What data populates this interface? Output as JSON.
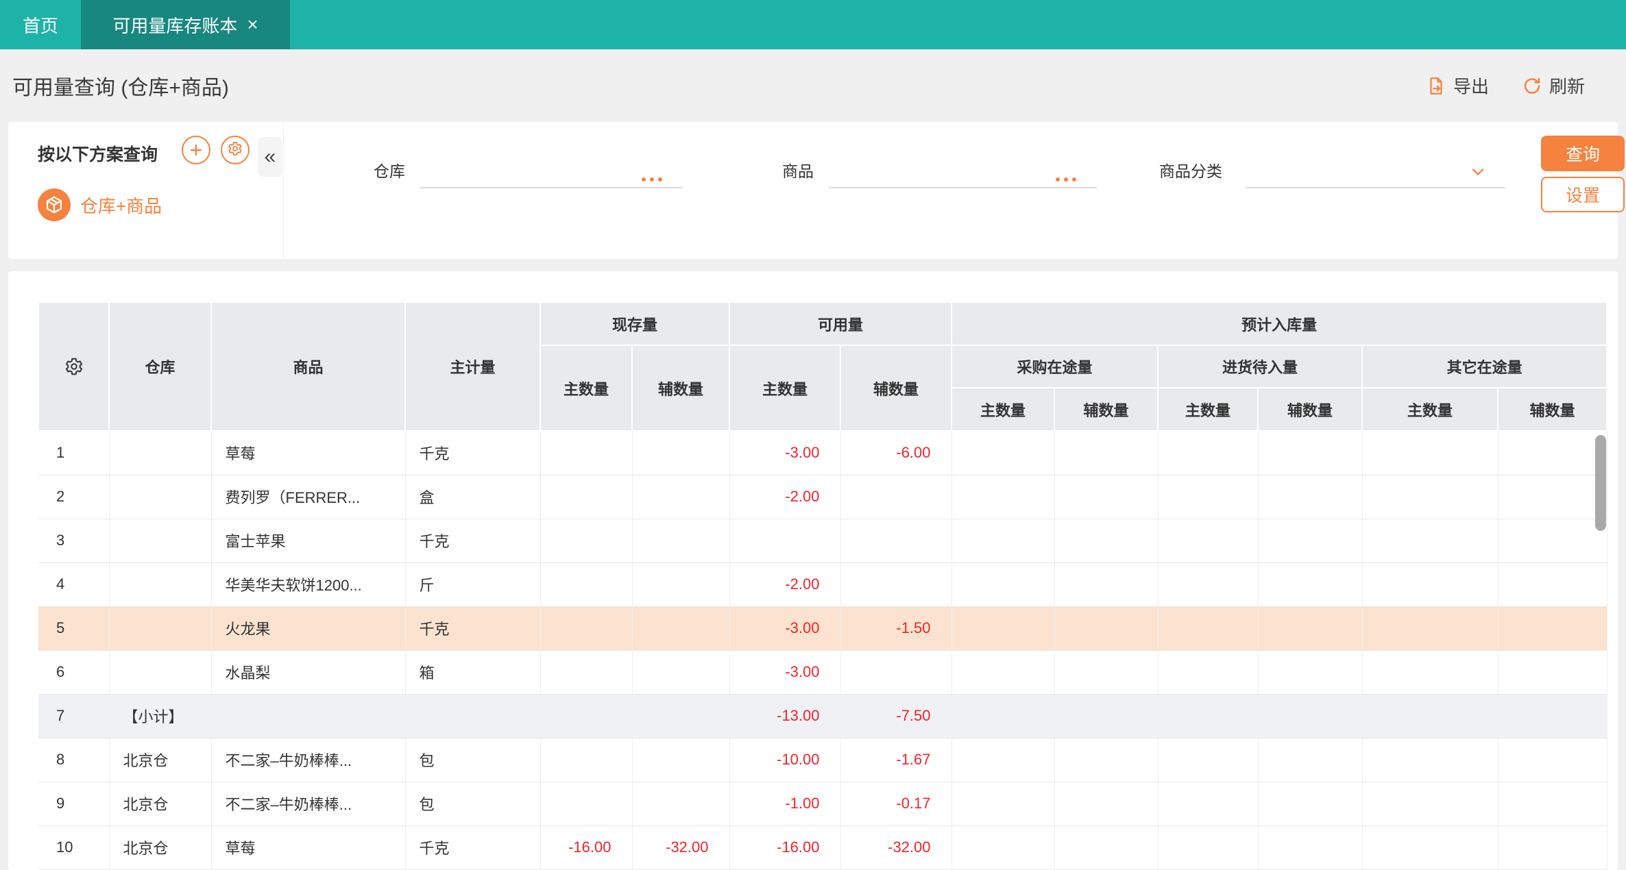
{
  "colors": {
    "teal": "#1db3a8",
    "teal-dark": "#17877f",
    "accent": "#f6823f",
    "red": "#f2242c",
    "page-bg": "#f0f0f1",
    "header-bg": "#e9eaec",
    "selected-bg": "#fbe3d0",
    "subtotal-bg": "#eff1f4",
    "border": "#e9e9e9",
    "thumb": "#a9a9a9"
  },
  "tab_bar": {
    "tabs": [
      {
        "label": "首页"
      },
      {
        "label": "可用量库存账本",
        "close": "×"
      }
    ]
  },
  "page_header": {
    "title": "可用量查询 (仓库+商品)",
    "actions": {
      "export": "导出",
      "refresh": "刷新"
    }
  },
  "filter_panel": {
    "title": "按以下方案查询",
    "add_icon": "+",
    "collapse_icon": "«",
    "scheme": {
      "label": "仓库+商品",
      "icon": "package-icon"
    },
    "fields": {
      "warehouse": {
        "label": "仓库",
        "value": "",
        "icon": "ellipsis-icon"
      },
      "product": {
        "label": "商品",
        "value": "",
        "icon": "ellipsis-icon"
      },
      "category": {
        "label": "商品分类",
        "value": "",
        "icon": "chevron-down-icon"
      }
    },
    "buttons": {
      "query": "查询",
      "settings": "设置"
    }
  },
  "table": {
    "headers": {
      "warehouse": "仓库",
      "product": "商品",
      "unit": "主计量",
      "on_hand": "现存量",
      "available": "可用量",
      "expected_inbound": "预计入库量",
      "purchase_in_transit": "采购在途量",
      "incoming_pending": "进货待入量",
      "other_in_transit": "其它在途量",
      "main_qty": "主数量",
      "aux_qty": "辅数量"
    },
    "row_fields": [
      "no",
      "warehouse",
      "product",
      "unit",
      "onhand_main",
      "onhand_aux",
      "avail_main",
      "avail_aux",
      "po_main",
      "po_aux",
      "in_main",
      "in_aux",
      "other_main",
      "other_aux"
    ],
    "rows": [
      {
        "no": "1",
        "product": "草莓",
        "unit": "千克",
        "avail_main": "-3.00",
        "avail_aux": "-6.00"
      },
      {
        "no": "2",
        "product": "费列罗（FERRER...",
        "unit": "盒",
        "avail_main": "-2.00"
      },
      {
        "no": "3",
        "product": "富士苹果",
        "unit": "千克"
      },
      {
        "no": "4",
        "product": "华美华夫软饼1200...",
        "unit": "斤",
        "avail_main": "-2.00"
      },
      {
        "no": "5",
        "product": "火龙果",
        "unit": "千克",
        "avail_main": "-3.00",
        "avail_aux": "-1.50",
        "state": "selected"
      },
      {
        "no": "6",
        "product": "水晶梨",
        "unit": "箱",
        "avail_main": "-3.00"
      },
      {
        "no": "7",
        "warehouse": "【小计】",
        "avail_main": "-13.00",
        "avail_aux": "-7.50",
        "state": "subtotal"
      },
      {
        "no": "8",
        "warehouse": "北京仓",
        "product": "不二家–牛奶棒棒...",
        "unit": "包",
        "avail_main": "-10.00",
        "avail_aux": "-1.67"
      },
      {
        "no": "9",
        "warehouse": "北京仓",
        "product": "不二家–牛奶棒棒...",
        "unit": "包",
        "avail_main": "-1.00",
        "avail_aux": "-0.17"
      },
      {
        "no": "10",
        "warehouse": "北京仓",
        "product": "草莓",
        "unit": "千克",
        "onhand_main": "-16.00",
        "onhand_aux": "-32.00",
        "avail_main": "-16.00",
        "avail_aux": "-32.00"
      }
    ]
  }
}
